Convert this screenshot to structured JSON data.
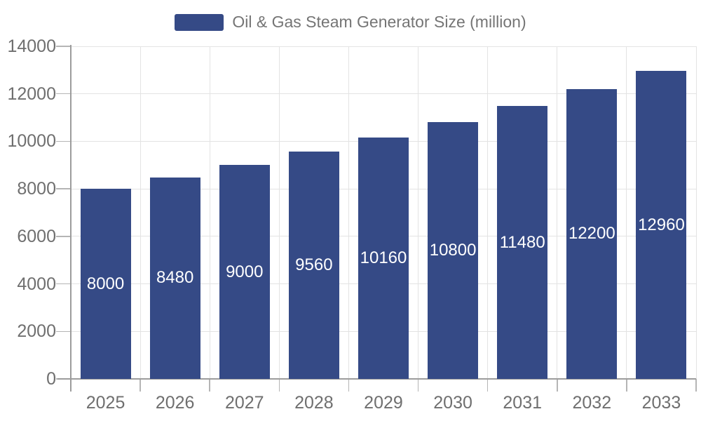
{
  "legend": {
    "label": "Oil & Gas Steam Generator Size (million)"
  },
  "chart_data": {
    "type": "bar",
    "title": "Oil & Gas Steam Generator Size (million)",
    "categories": [
      "2025",
      "2026",
      "2027",
      "2028",
      "2029",
      "2030",
      "2031",
      "2032",
      "2033"
    ],
    "series": [
      {
        "name": "Oil & Gas Steam Generator Size (million)",
        "values": [
          8000,
          8480,
          9000,
          9560,
          10160,
          10800,
          11480,
          12200,
          12960
        ]
      }
    ],
    "bar_value_labels": [
      "8000",
      "8480",
      "9000",
      "9560",
      "10160",
      "10800",
      "11480",
      "12200",
      "12960"
    ],
    "xlabel": "",
    "ylabel": "",
    "ylim": [
      0,
      14000
    ],
    "yticks": [
      0,
      2000,
      4000,
      6000,
      8000,
      10000,
      12000,
      14000
    ],
    "grid": true,
    "legend_position": "top-center",
    "value_label_position": "inside-center",
    "colors": {
      "bar": "#354a86",
      "bar_value_text": "#ffffff",
      "axis_text": "#6f6f6f",
      "legend_text": "#757575",
      "gridline": "#e3e3e3",
      "axis_line": "#9c9c9c",
      "tick": "#b5b5b5",
      "background": "#ffffff"
    }
  }
}
